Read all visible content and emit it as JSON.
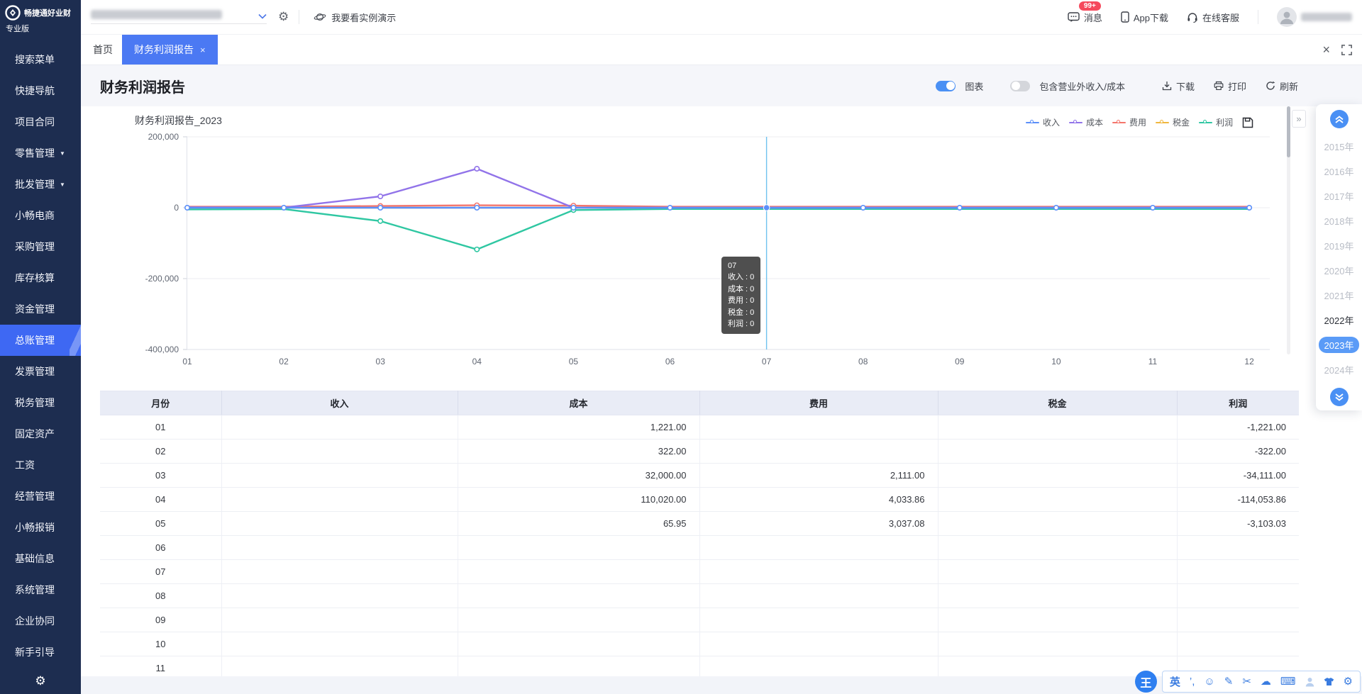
{
  "brand": {
    "name": "畅捷通好业财",
    "edition": "专业版"
  },
  "topbar": {
    "demo_button": "我要看实例演示",
    "messages": "消息",
    "messages_badge": "99+",
    "app_download": "App下载",
    "online_service": "在线客服"
  },
  "sidebar": {
    "items": [
      {
        "label": "搜索菜单"
      },
      {
        "label": "快捷导航"
      },
      {
        "label": "项目合同"
      },
      {
        "label": "零售管理",
        "arrow": true
      },
      {
        "label": "批发管理",
        "arrow": true
      },
      {
        "label": "小畅电商"
      },
      {
        "label": "采购管理"
      },
      {
        "label": "库存核算"
      },
      {
        "label": "资金管理"
      },
      {
        "label": "总账管理",
        "active": true
      },
      {
        "label": "发票管理"
      },
      {
        "label": "税务管理"
      },
      {
        "label": "固定资产"
      },
      {
        "label": "工资"
      },
      {
        "label": "经营管理"
      },
      {
        "label": "小畅报销"
      },
      {
        "label": "基础信息"
      },
      {
        "label": "系统管理"
      },
      {
        "label": "企业协同"
      },
      {
        "label": "新手引导"
      }
    ]
  },
  "tabs": {
    "items": [
      {
        "label": "首页"
      },
      {
        "label": "财务利润报告",
        "active": true,
        "closable": true
      }
    ]
  },
  "page": {
    "title": "财务利润报告",
    "toggle_chart_label": "图表",
    "toggle_chart_on": true,
    "toggle_include_label": "包含营业外收入/成本",
    "toggle_include_on": false,
    "download_label": "下载",
    "print_label": "打印",
    "refresh_label": "刷新"
  },
  "chart_data": {
    "type": "line",
    "title": "财务利润报告_2023",
    "categories": [
      "01",
      "02",
      "03",
      "04",
      "05",
      "06",
      "07",
      "08",
      "09",
      "10",
      "11",
      "12"
    ],
    "series": [
      {
        "name": "收入",
        "color": "#5b8ff9",
        "values": [
          0,
          0,
          0,
          0,
          0,
          0,
          0,
          0,
          0,
          0,
          0,
          0
        ]
      },
      {
        "name": "成本",
        "color": "#9173e9",
        "values": [
          1221,
          322,
          32000,
          110020,
          65.95,
          0,
          0,
          0,
          0,
          0,
          0,
          0
        ]
      },
      {
        "name": "费用",
        "color": "#f4756c",
        "values": [
          0,
          0,
          2111,
          4033.86,
          3037.08,
          0,
          0,
          0,
          0,
          0,
          0,
          0
        ]
      },
      {
        "name": "税金",
        "color": "#f0b73f",
        "values": [
          0,
          0,
          0,
          0,
          0,
          0,
          0,
          0,
          0,
          0,
          0,
          0
        ]
      },
      {
        "name": "利润",
        "color": "#2fc7a2",
        "values": [
          -1221,
          -322,
          -34111,
          -114053.86,
          -3103.03,
          0,
          0,
          0,
          0,
          0,
          0,
          0
        ]
      }
    ],
    "ylim": [
      -400000,
      200000
    ],
    "yticks": [
      {
        "value": 200000,
        "label": "200,000"
      },
      {
        "value": 0,
        "label": "0"
      },
      {
        "value": -200000,
        "label": "-200,000"
      },
      {
        "value": -400000,
        "label": "-400,000"
      }
    ],
    "grid": true,
    "legend_position": "top-right",
    "hover_category": "07"
  },
  "tooltip": {
    "title": "07",
    "rows": [
      {
        "label": "收入",
        "value": "0"
      },
      {
        "label": "成本",
        "value": "0"
      },
      {
        "label": "费用",
        "value": "0"
      },
      {
        "label": "税金",
        "value": "0"
      },
      {
        "label": "利润",
        "value": "0"
      }
    ]
  },
  "year_panel": {
    "years": [
      {
        "label": "2015年",
        "state": "muted"
      },
      {
        "label": "2016年",
        "state": "muted"
      },
      {
        "label": "2017年",
        "state": "muted"
      },
      {
        "label": "2018年",
        "state": "muted"
      },
      {
        "label": "2019年",
        "state": "muted"
      },
      {
        "label": "2020年",
        "state": "muted"
      },
      {
        "label": "2021年",
        "state": "muted"
      },
      {
        "label": "2022年",
        "state": "normal"
      },
      {
        "label": "2023年",
        "state": "selected"
      },
      {
        "label": "2024年",
        "state": "muted"
      }
    ]
  },
  "table": {
    "headers": [
      "月份",
      "收入",
      "成本",
      "费用",
      "税金",
      "利润"
    ],
    "rows": [
      {
        "month": "01",
        "income": "",
        "cost": "1,221.00",
        "expense": "",
        "tax": "",
        "profit": "-1,221.00"
      },
      {
        "month": "02",
        "income": "",
        "cost": "322.00",
        "expense": "",
        "tax": "",
        "profit": "-322.00"
      },
      {
        "month": "03",
        "income": "",
        "cost": "32,000.00",
        "expense": "2,111.00",
        "tax": "",
        "profit": "-34,111.00"
      },
      {
        "month": "04",
        "income": "",
        "cost": "110,020.00",
        "expense": "4,033.86",
        "tax": "",
        "profit": "-114,053.86"
      },
      {
        "month": "05",
        "income": "",
        "cost": "65.95",
        "expense": "3,037.08",
        "tax": "",
        "profit": "-3,103.03"
      },
      {
        "month": "06",
        "income": "",
        "cost": "",
        "expense": "",
        "tax": "",
        "profit": ""
      },
      {
        "month": "07",
        "income": "",
        "cost": "",
        "expense": "",
        "tax": "",
        "profit": ""
      },
      {
        "month": "08",
        "income": "",
        "cost": "",
        "expense": "",
        "tax": "",
        "profit": ""
      },
      {
        "month": "09",
        "income": "",
        "cost": "",
        "expense": "",
        "tax": "",
        "profit": ""
      },
      {
        "month": "10",
        "income": "",
        "cost": "",
        "expense": "",
        "tax": "",
        "profit": ""
      },
      {
        "month": "11",
        "income": "",
        "cost": "",
        "expense": "",
        "tax": "",
        "profit": ""
      }
    ]
  },
  "ime": {
    "lang": "英",
    "punct": "’,"
  }
}
